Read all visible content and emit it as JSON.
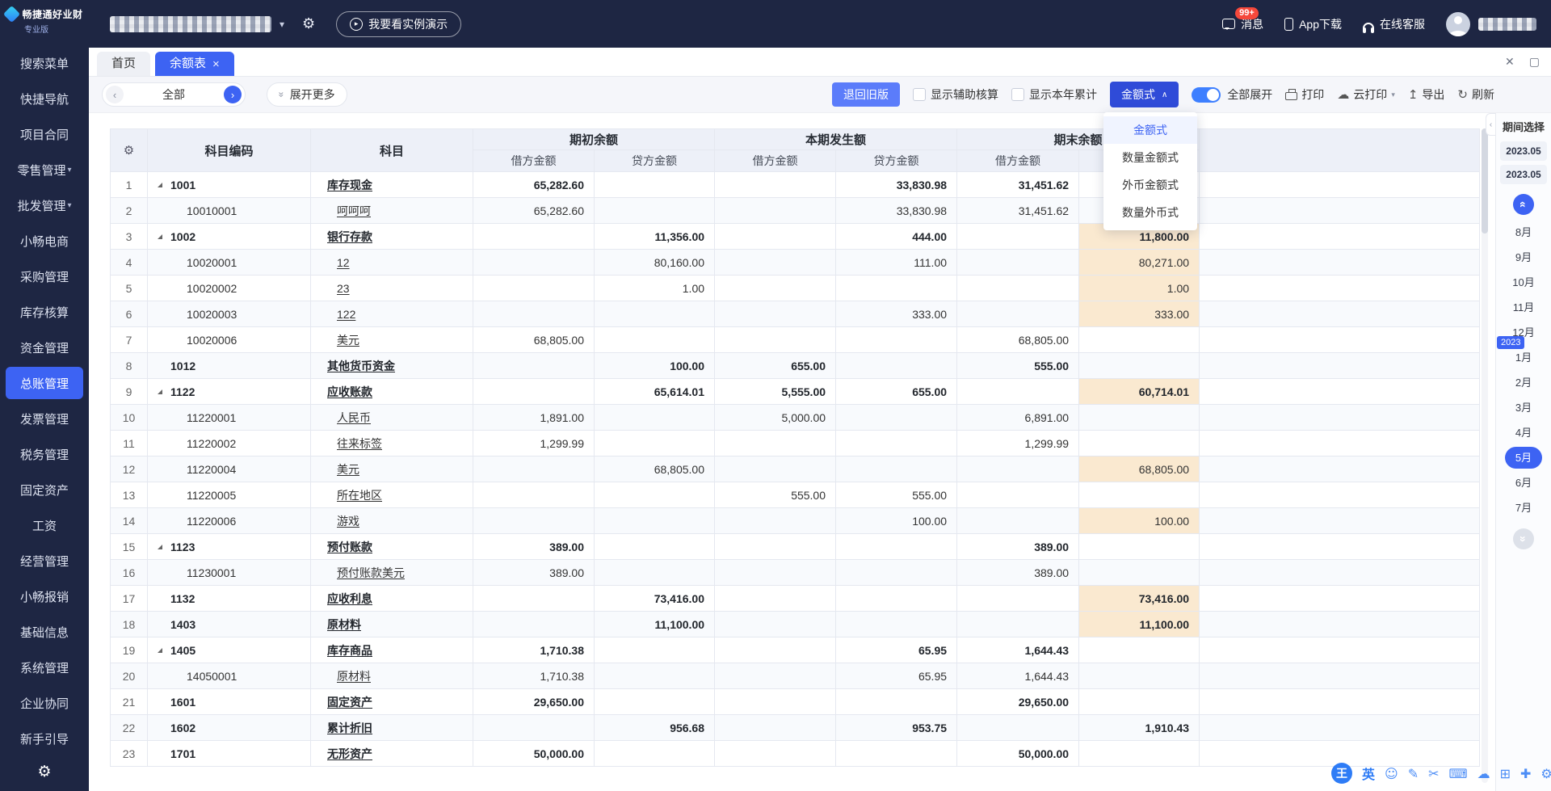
{
  "colors": {
    "accent": "#3D63F3",
    "navy": "#1E2643",
    "abnormal_highlight": "#FAE9D0",
    "badge_red": "#F5483B"
  },
  "app": {
    "logo_title": "畅捷通好业财",
    "logo_subtitle": "专业版"
  },
  "topbar": {
    "demo_label": "我要看实例演示",
    "messages_label": "消息",
    "messages_badge": "99+",
    "app_download_label": "App下载",
    "support_label": "在线客服"
  },
  "sidebar": {
    "items": [
      {
        "label": "搜索菜单"
      },
      {
        "label": "快捷导航"
      },
      {
        "label": "项目合同"
      },
      {
        "label": "零售管理",
        "caret": true
      },
      {
        "label": "批发管理",
        "caret": true
      },
      {
        "label": "小畅电商"
      },
      {
        "label": "采购管理"
      },
      {
        "label": "库存核算"
      },
      {
        "label": "资金管理"
      },
      {
        "label": "总账管理",
        "active": true
      },
      {
        "label": "发票管理"
      },
      {
        "label": "税务管理"
      },
      {
        "label": "固定资产"
      },
      {
        "label": "工资"
      },
      {
        "label": "经营管理"
      },
      {
        "label": "小畅报销"
      },
      {
        "label": "基础信息"
      },
      {
        "label": "系统管理"
      },
      {
        "label": "企业协同"
      },
      {
        "label": "新手引导"
      }
    ]
  },
  "tabs": [
    {
      "label": "首页",
      "active": false
    },
    {
      "label": "余额表",
      "active": true,
      "closable": true
    }
  ],
  "toolbar": {
    "filter_value": "全部",
    "expand_more_label": "展开更多",
    "back_to_old_label": "退回旧版",
    "show_aux_label": "显示辅助核算",
    "show_ytd_label": "显示本年累计",
    "style_button_label": "金额式",
    "expand_all_label": "全部展开",
    "print_label": "打印",
    "cloud_print_label": "云打印",
    "export_label": "导出",
    "refresh_label": "刷新"
  },
  "style_menu": {
    "items": [
      "金额式",
      "数量金额式",
      "外币金额式",
      "数量外币式"
    ],
    "selected": "金额式"
  },
  "table": {
    "columns": {
      "code": "科目编码",
      "subject": "科目"
    },
    "groups": [
      "期初余额",
      "本期发生额",
      "期末余额"
    ],
    "sub_headers": [
      "借方金额",
      "贷方金额"
    ],
    "rows": [
      {
        "num": 1,
        "code": "1001",
        "name": "库存现金",
        "parent": true,
        "expand": true,
        "init_debit": "65,282.60",
        "init_credit": "",
        "cur_debit": "",
        "cur_credit": "33,830.98",
        "end_debit": "31,451.62",
        "end_credit": "",
        "hl": false
      },
      {
        "num": 2,
        "code": "10010001",
        "name": "呵呵呵",
        "child": true,
        "init_debit": "65,282.60",
        "init_credit": "",
        "cur_debit": "",
        "cur_credit": "33,830.98",
        "end_debit": "31,451.62",
        "end_credit": "",
        "hl": false
      },
      {
        "num": 3,
        "code": "1002",
        "name": "银行存款",
        "parent": true,
        "expand": true,
        "init_debit": "",
        "init_credit": "11,356.00",
        "cur_debit": "",
        "cur_credit": "444.00",
        "end_debit": "",
        "end_credit": "11,800.00",
        "hl": true
      },
      {
        "num": 4,
        "code": "10020001",
        "name": "12",
        "child": true,
        "init_debit": "",
        "init_credit": "80,160.00",
        "cur_debit": "",
        "cur_credit": "111.00",
        "end_debit": "",
        "end_credit": "80,271.00",
        "hl": true
      },
      {
        "num": 5,
        "code": "10020002",
        "name": "23",
        "child": true,
        "init_debit": "",
        "init_credit": "1.00",
        "cur_debit": "",
        "cur_credit": "",
        "end_debit": "",
        "end_credit": "1.00",
        "hl": true
      },
      {
        "num": 6,
        "code": "10020003",
        "name": "122",
        "child": true,
        "init_debit": "",
        "init_credit": "",
        "cur_debit": "",
        "cur_credit": "333.00",
        "end_debit": "",
        "end_credit": "333.00",
        "hl": true
      },
      {
        "num": 7,
        "code": "10020006",
        "name": "美元",
        "child": true,
        "init_debit": "68,805.00",
        "init_credit": "",
        "cur_debit": "",
        "cur_credit": "",
        "end_debit": "68,805.00",
        "end_credit": "",
        "hl": false
      },
      {
        "num": 8,
        "code": "1012",
        "name": "其他货币资金",
        "parent": true,
        "init_debit": "",
        "init_credit": "100.00",
        "cur_debit": "655.00",
        "cur_credit": "",
        "end_debit": "555.00",
        "end_credit": "",
        "hl": false
      },
      {
        "num": 9,
        "code": "1122",
        "name": "应收账款",
        "parent": true,
        "expand": true,
        "init_debit": "",
        "init_credit": "65,614.01",
        "cur_debit": "5,555.00",
        "cur_credit": "655.00",
        "end_debit": "",
        "end_credit": "60,714.01",
        "hl": true
      },
      {
        "num": 10,
        "code": "11220001",
        "name": "人民币",
        "child": true,
        "init_debit": "1,891.00",
        "init_credit": "",
        "cur_debit": "5,000.00",
        "cur_credit": "",
        "end_debit": "6,891.00",
        "end_credit": "",
        "hl": false
      },
      {
        "num": 11,
        "code": "11220002",
        "name": "往来标签",
        "child": true,
        "init_debit": "1,299.99",
        "init_credit": "",
        "cur_debit": "",
        "cur_credit": "",
        "end_debit": "1,299.99",
        "end_credit": "",
        "hl": false
      },
      {
        "num": 12,
        "code": "11220004",
        "name": "美元",
        "child": true,
        "init_debit": "",
        "init_credit": "68,805.00",
        "cur_debit": "",
        "cur_credit": "",
        "end_debit": "",
        "end_credit": "68,805.00",
        "hl": true
      },
      {
        "num": 13,
        "code": "11220005",
        "name": "所在地区",
        "child": true,
        "init_debit": "",
        "init_credit": "",
        "cur_debit": "555.00",
        "cur_credit": "555.00",
        "end_debit": "",
        "end_credit": "",
        "hl": false
      },
      {
        "num": 14,
        "code": "11220006",
        "name": "游戏",
        "child": true,
        "init_debit": "",
        "init_credit": "",
        "cur_debit": "",
        "cur_credit": "100.00",
        "end_debit": "",
        "end_credit": "100.00",
        "hl": true
      },
      {
        "num": 15,
        "code": "1123",
        "name": "预付账款",
        "parent": true,
        "expand": true,
        "init_debit": "389.00",
        "init_credit": "",
        "cur_debit": "",
        "cur_credit": "",
        "end_debit": "389.00",
        "end_credit": "",
        "hl": false
      },
      {
        "num": 16,
        "code": "11230001",
        "name": "预付账款美元",
        "child": true,
        "init_debit": "389.00",
        "init_credit": "",
        "cur_debit": "",
        "cur_credit": "",
        "end_debit": "389.00",
        "end_credit": "",
        "hl": false
      },
      {
        "num": 17,
        "code": "1132",
        "name": "应收利息",
        "parent": true,
        "init_debit": "",
        "init_credit": "73,416.00",
        "cur_debit": "",
        "cur_credit": "",
        "end_debit": "",
        "end_credit": "73,416.00",
        "hl": true
      },
      {
        "num": 18,
        "code": "1403",
        "name": "原材料",
        "parent": true,
        "init_debit": "",
        "init_credit": "11,100.00",
        "cur_debit": "",
        "cur_credit": "",
        "end_debit": "",
        "end_credit": "11,100.00",
        "hl": true
      },
      {
        "num": 19,
        "code": "1405",
        "name": "库存商品",
        "parent": true,
        "expand": true,
        "init_debit": "1,710.38",
        "init_credit": "",
        "cur_debit": "",
        "cur_credit": "65.95",
        "end_debit": "1,644.43",
        "end_credit": "",
        "hl": false
      },
      {
        "num": 20,
        "code": "14050001",
        "name": "原材料",
        "child": true,
        "init_debit": "1,710.38",
        "init_credit": "",
        "cur_debit": "",
        "cur_credit": "65.95",
        "end_debit": "1,644.43",
        "end_credit": "",
        "hl": false
      },
      {
        "num": 21,
        "code": "1601",
        "name": "固定资产",
        "parent": true,
        "init_debit": "29,650.00",
        "init_credit": "",
        "cur_debit": "",
        "cur_credit": "",
        "end_debit": "29,650.00",
        "end_credit": "",
        "hl": false
      },
      {
        "num": 22,
        "code": "1602",
        "name": "累计折旧",
        "parent": true,
        "init_debit": "",
        "init_credit": "956.68",
        "cur_debit": "",
        "cur_credit": "953.75",
        "end_debit": "",
        "end_credit": "1,910.43",
        "hl": false
      },
      {
        "num": 23,
        "code": "1701",
        "name": "无形资产",
        "parent": true,
        "init_debit": "50,000.00",
        "init_credit": "",
        "cur_debit": "",
        "cur_credit": "",
        "end_debit": "50,000.00",
        "end_credit": "",
        "hl": false
      }
    ]
  },
  "period_panel": {
    "title": "期间选择",
    "date_from": "2023.05",
    "date_to": "2023.05",
    "year_badge": "2023",
    "months": [
      "8月",
      "9月",
      "10月",
      "11月",
      "12月",
      "1月",
      "2月",
      "3月",
      "4月",
      "5月",
      "6月",
      "7月"
    ],
    "active_month": "5月"
  },
  "ime": {
    "logo": "王",
    "lang": "英",
    "icons": [
      "emoji-icon",
      "pen-icon",
      "scissors-icon",
      "keyboard-icon",
      "cloud-icon",
      "apps-grid-icon",
      "plus-icon",
      "settings-icon"
    ]
  }
}
